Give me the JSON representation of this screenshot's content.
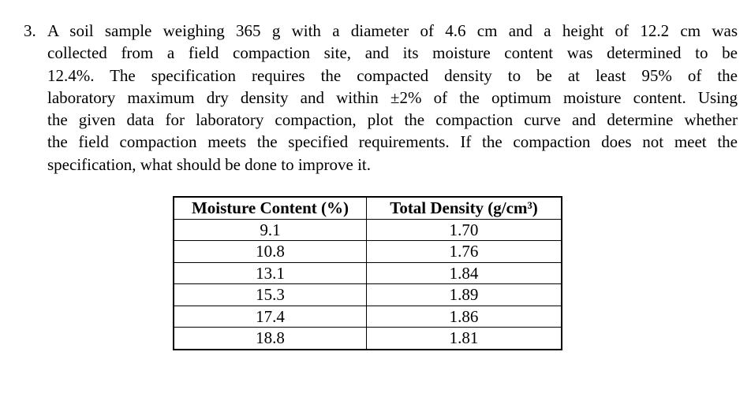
{
  "page": {
    "background_color": "#ffffff",
    "text_color": "#000000",
    "table_border_color": "#000000"
  },
  "problem": {
    "number": "3.",
    "lines": [
      "A soil sample weighing 365 g with a diameter of 4.6 cm and a height of 12.2 cm was",
      "collected from a field compaction site, and its moisture content was determined to be",
      "12.4%. The specification requires the compacted density to be at least 95% of the",
      "laboratory maximum dry density and within ±2% of the optimum moisture content. Using",
      "the given data for laboratory compaction, plot the compaction curve and determine whether",
      "the field compaction meets the specified requirements. If the compaction does not meet the",
      "specification, what should be done to improve it."
    ]
  },
  "table": {
    "headers": [
      "Moisture Content (%)",
      "Total Density (g/cm³)"
    ],
    "rows": [
      [
        "9.1",
        "1.70"
      ],
      [
        "10.8",
        "1.76"
      ],
      [
        "13.1",
        "1.84"
      ],
      [
        "15.3",
        "1.89"
      ],
      [
        "17.4",
        "1.86"
      ],
      [
        "18.8",
        "1.81"
      ]
    ]
  }
}
